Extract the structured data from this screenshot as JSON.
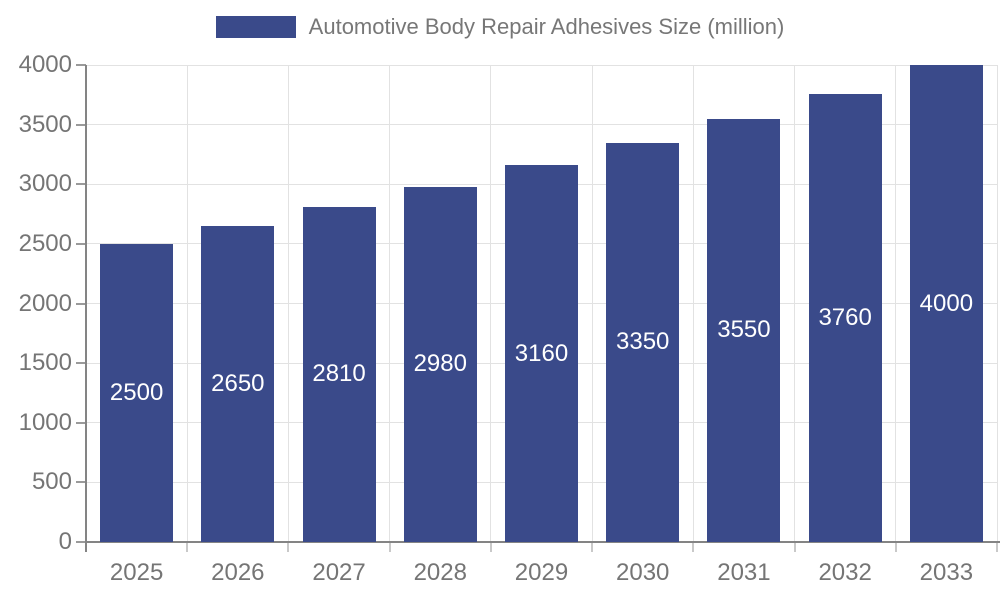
{
  "chart_data": {
    "type": "bar",
    "title": "",
    "legend_label": "Automotive Body Repair Adhesives Size (million)",
    "legend_position": "top",
    "categories": [
      "2025",
      "2026",
      "2027",
      "2028",
      "2029",
      "2030",
      "2031",
      "2032",
      "2033"
    ],
    "values": [
      2500,
      2650,
      2810,
      2980,
      3160,
      3350,
      3550,
      3760,
      4000
    ],
    "value_labels": [
      "2500",
      "2650",
      "2810",
      "2980",
      "3160",
      "3350",
      "3550",
      "3760",
      "4000"
    ],
    "xlabel": "",
    "ylabel": "",
    "ylim": [
      0,
      4000
    ],
    "yticks": [
      0,
      500,
      1000,
      1500,
      2000,
      2500,
      3000,
      3500,
      4000
    ],
    "ytick_labels": [
      "0",
      "500",
      "1000",
      "1500",
      "2000",
      "2500",
      "3000",
      "3500",
      "4000"
    ],
    "grid": true,
    "colors": {
      "bar": "#3a4a8a",
      "bar_value_text": "#ffffff",
      "axis_line": "#848484",
      "gridline": "#e2e2e2",
      "x_tick": "#c9c9c9",
      "y_tick": "#9a9a9a",
      "tick_label": "#757575",
      "legend_text": "#777777",
      "background": "#ffffff"
    }
  }
}
